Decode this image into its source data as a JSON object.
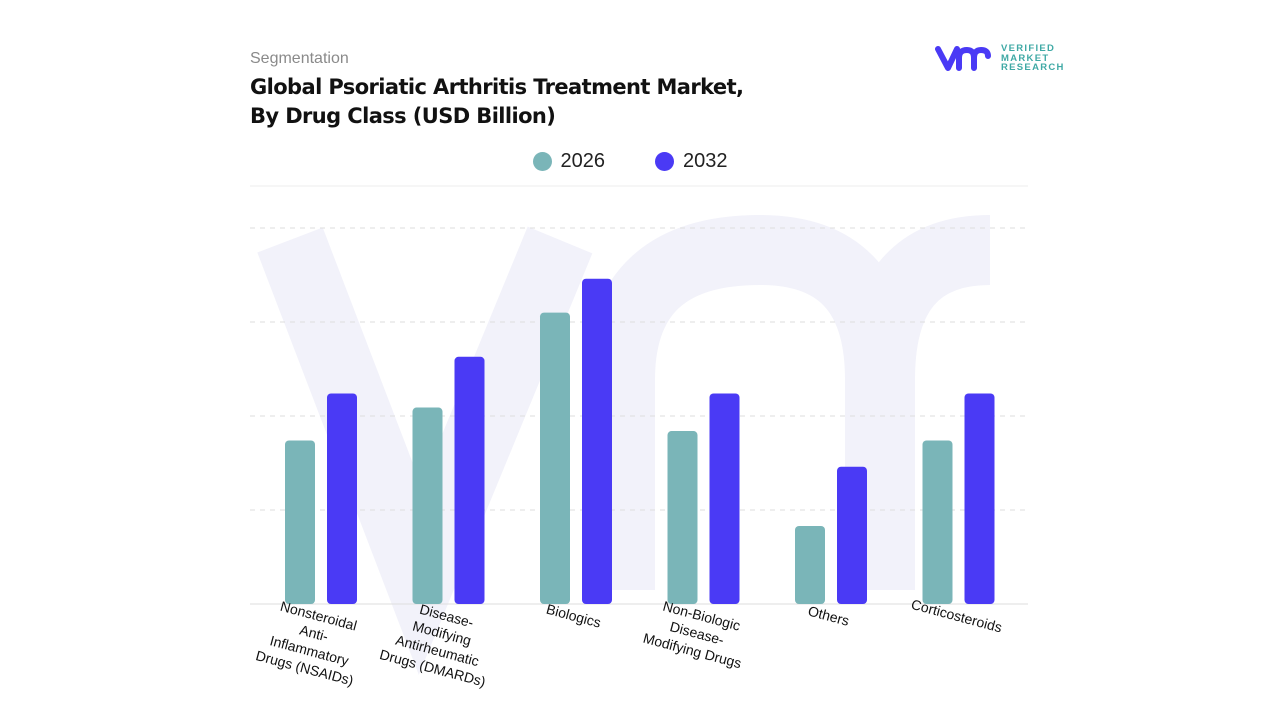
{
  "header": {
    "segment_label": "Segmentation",
    "title": "Global Psoriatic Arthritis Treatment Market,\nBy Drug Class (USD Billion)"
  },
  "logo": {
    "text": "VERIFIED\nMARKET\nRESEARCH"
  },
  "chart_data": {
    "type": "bar",
    "title": "Global Psoriatic Arthritis Treatment Market, By Drug Class (USD Billion)",
    "categories": [
      "Nonsteroidal\nAnti-\nInflammatory\nDrugs (NSAIDs)",
      "Disease-\nModifying\nAntirheumatic\nDrugs (DMARDs)",
      "Biologics",
      "Non-Biologic\nDisease-\nModifying Drugs",
      "Others",
      "Corticosteroids"
    ],
    "series": [
      {
        "name": "2026",
        "color": "#7ab5b8",
        "values": [
          1.74,
          2.09,
          3.1,
          1.84,
          0.83,
          1.74
        ]
      },
      {
        "name": "2032",
        "color": "#4a3af5",
        "values": [
          2.24,
          2.63,
          3.46,
          2.24,
          1.46,
          2.24
        ]
      }
    ],
    "ylim": [
      0,
      4
    ],
    "grid": true,
    "y_tick_labels_shown": false,
    "legend": "top-center"
  }
}
